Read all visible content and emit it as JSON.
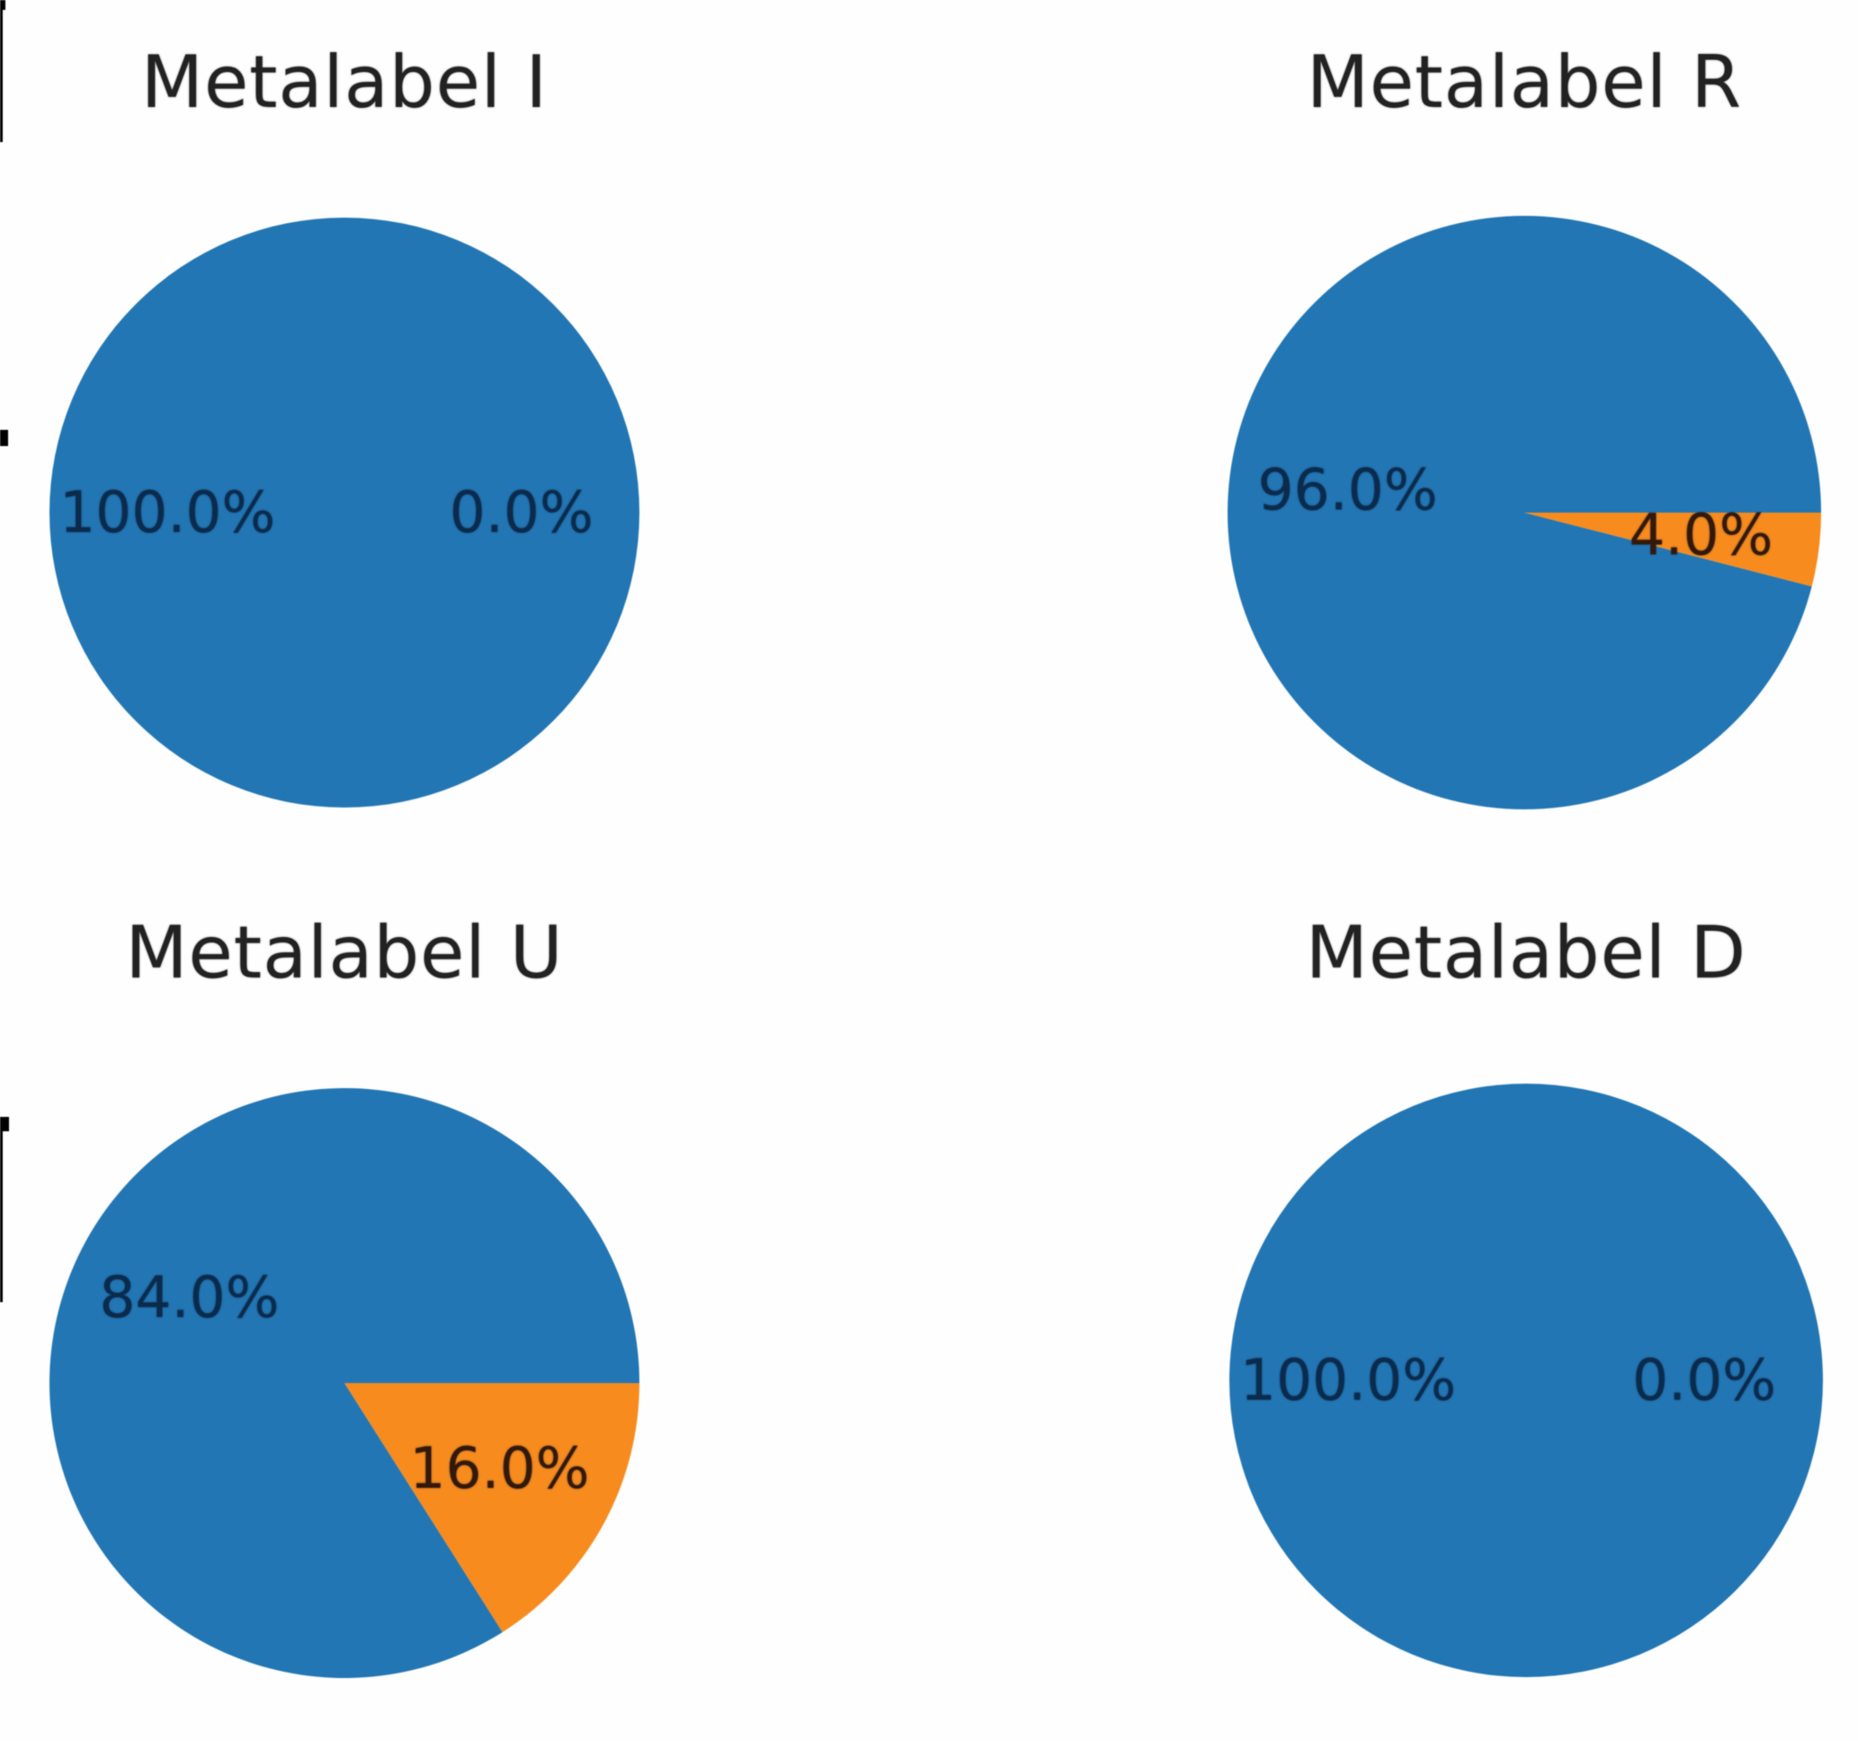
{
  "figure": {
    "background": "#fefefe",
    "rows": 2,
    "cols": 2
  },
  "palette": {
    "blue": "#2276b4",
    "orange": "#f78b1e",
    "title_color": "#222222"
  },
  "chart_data": [
    {
      "type": "pie",
      "title": "Metalabel I",
      "start_angle": 0,
      "counterclock": true,
      "pctdistance": 0.6,
      "legend": "none",
      "slices": [
        {
          "value": 100.0,
          "label": "100.0%",
          "color": "#2276b4",
          "label_color": "#0b2b4d"
        },
        {
          "value": 0.0,
          "label": "0.0%",
          "color": "#f78b1e",
          "label_color": "#0b2b4d"
        }
      ]
    },
    {
      "type": "pie",
      "title": "Metalabel R",
      "start_angle": 0,
      "counterclock": true,
      "pctdistance": 0.6,
      "legend": "none",
      "slices": [
        {
          "value": 96.0,
          "label": "96.0%",
          "color": "#2276b4",
          "label_color": "#0b2b4d"
        },
        {
          "value": 4.0,
          "label": "4.0%",
          "color": "#f78b1e",
          "label_color": "#33190a"
        }
      ]
    },
    {
      "type": "pie",
      "title": "Metalabel U",
      "start_angle": 0,
      "counterclock": true,
      "pctdistance": 0.6,
      "legend": "none",
      "slices": [
        {
          "value": 84.0,
          "label": "84.0%",
          "color": "#2276b4",
          "label_color": "#0b2b4d"
        },
        {
          "value": 16.0,
          "label": "16.0%",
          "color": "#f78b1e",
          "label_color": "#33190a"
        }
      ]
    },
    {
      "type": "pie",
      "title": "Metalabel D",
      "start_angle": 0,
      "counterclock": true,
      "pctdistance": 0.6,
      "legend": "none",
      "slices": [
        {
          "value": 100.0,
          "label": "100.0%",
          "color": "#2276b4",
          "label_color": "#0b2b4d"
        },
        {
          "value": 0.0,
          "label": "0.0%",
          "color": "#f78b1e",
          "label_color": "#0b2b4d"
        }
      ]
    }
  ]
}
